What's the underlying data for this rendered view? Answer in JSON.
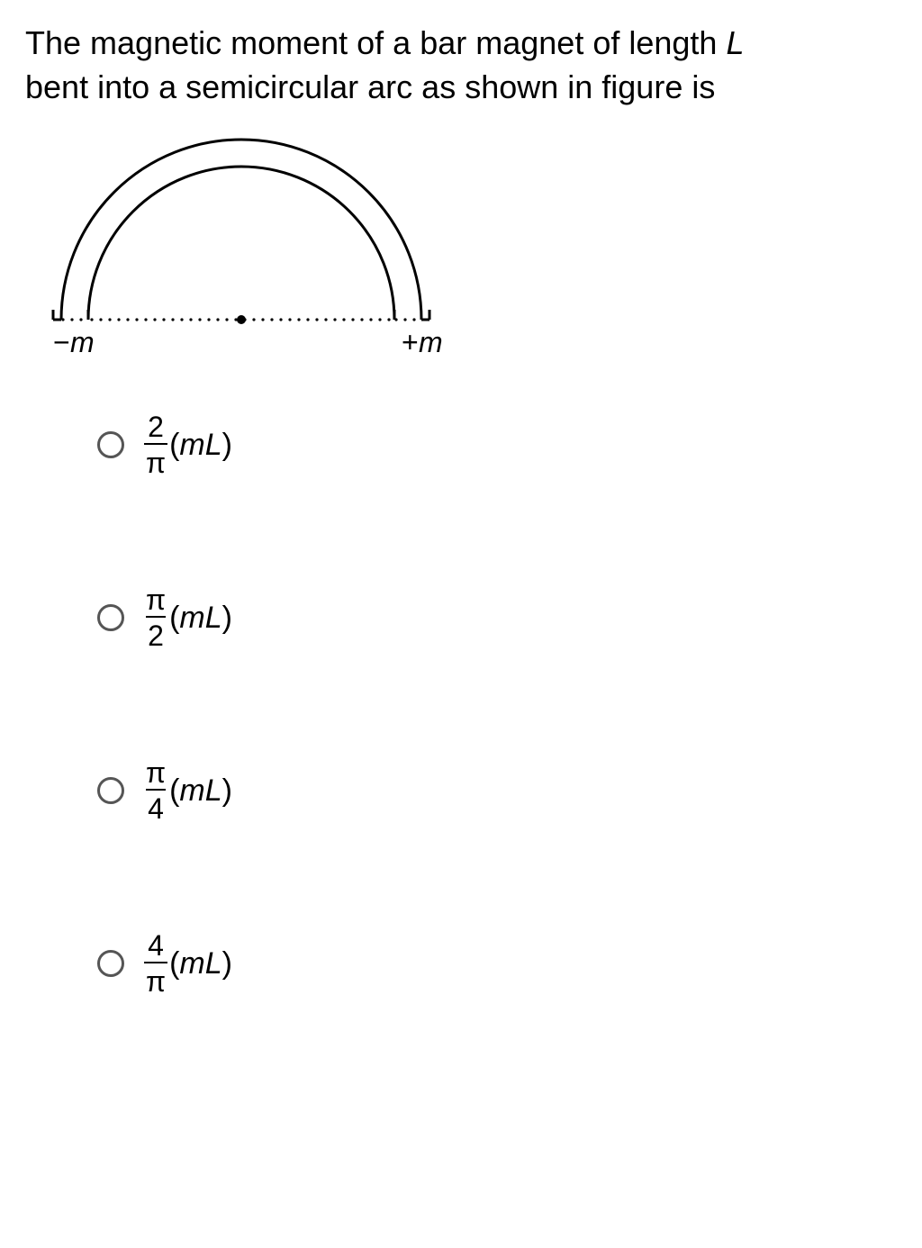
{
  "question": {
    "line1_pre": "The magnetic moment of a bar magnet of length ",
    "line1_var": "L",
    "line2": "bent into a semicircular arc as shown in figure is"
  },
  "figure": {
    "left_label_sign": "−",
    "left_label_var": "m",
    "right_label_sign": "+",
    "right_label_var": "m",
    "outer_radius": 200,
    "inner_radius": 170,
    "stroke_color": "#000000",
    "stroke_width": 3,
    "dot_radius": 5,
    "dot_spacing": 10,
    "label_fontsize": 32
  },
  "options": [
    {
      "num": "2",
      "den": "π",
      "after_open": "(",
      "after_var1": "m",
      "after_var2": "L",
      "after_close": ")"
    },
    {
      "num": "π",
      "den": "2",
      "after_open": "(",
      "after_var1": "m",
      "after_var2": "L",
      "after_close": ")"
    },
    {
      "num": "π",
      "den": "4",
      "after_open": "(",
      "after_var1": "m",
      "after_var2": "L",
      "after_close": ")"
    },
    {
      "num": "4",
      "den": "π",
      "after_open": "(",
      "after_var1": "m",
      "after_var2": "L",
      "after_close": ")"
    }
  ],
  "colors": {
    "text": "#000000",
    "radio_border": "#555555",
    "background": "#ffffff"
  }
}
